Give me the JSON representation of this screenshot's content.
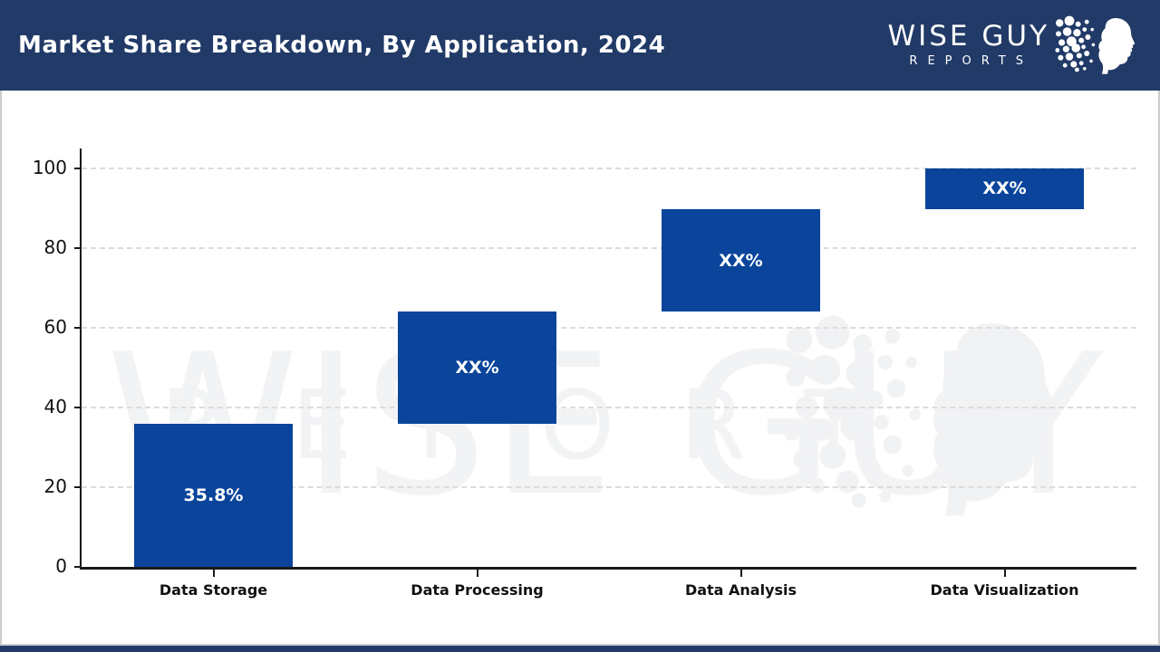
{
  "header": {
    "title": "Market Share Breakdown, By Application, 2024",
    "logo": {
      "line1": "WISE GUY",
      "line2": "REPORTS"
    }
  },
  "watermark": {
    "line1": "WISE GUY",
    "line2": "REPORTS"
  },
  "chart_data": {
    "type": "bar",
    "subtype": "floating-waterfall",
    "title": "Market Share Breakdown, By Application, 2024",
    "categories": [
      "Data Storage",
      "Data Processing",
      "Data Analysis",
      "Data Visualization"
    ],
    "segments": [
      {
        "category": "Data Storage",
        "start": 0,
        "end": 35.8,
        "label": "35.8%"
      },
      {
        "category": "Data Processing",
        "start": 35.8,
        "end": 64.0,
        "label": "XX%"
      },
      {
        "category": "Data Analysis",
        "start": 64.0,
        "end": 89.8,
        "label": "XX%"
      },
      {
        "category": "Data Visualization",
        "start": 89.8,
        "end": 100,
        "label": "XX%"
      }
    ],
    "yticks": [
      0,
      20,
      40,
      60,
      80,
      100
    ],
    "ylim": [
      0,
      105
    ],
    "xlabel": "",
    "ylabel": "",
    "legend": "none",
    "grid": "horizontal-dashed",
    "bar_color": "#0a449b"
  },
  "colors": {
    "header_bg": "#213a67",
    "bar_fill": "#0a449b",
    "gridline": "#dcdcdc",
    "axis": "#1a1a1a",
    "watermark": "#f2f3f5"
  }
}
